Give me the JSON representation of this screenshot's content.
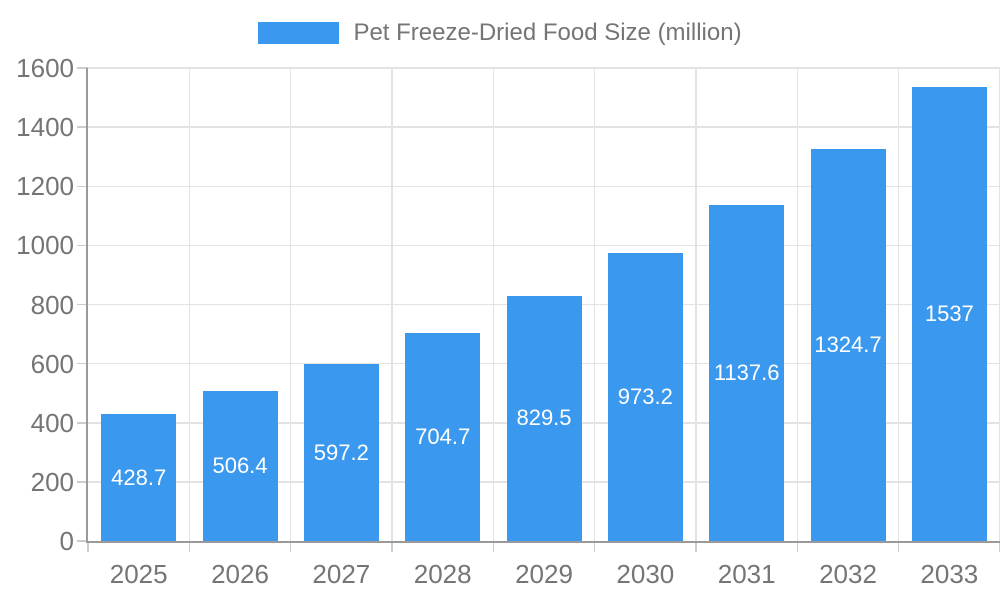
{
  "legend": {
    "label": "Pet Freeze-Dried Food Size (million)"
  },
  "chart_data": {
    "type": "bar",
    "title": "",
    "categories": [
      "2025",
      "2026",
      "2027",
      "2028",
      "2029",
      "2030",
      "2031",
      "2032",
      "2033"
    ],
    "values": [
      428.7,
      506.4,
      597.2,
      704.7,
      829.5,
      973.2,
      1137.6,
      1324.7,
      1537
    ],
    "series_name": "Pet Freeze-Dried Food Size (million)",
    "value_labels": [
      "428.7",
      "506.4",
      "597.2",
      "704.7",
      "829.5",
      "973.2",
      "1137.6",
      "1324.7",
      "1537"
    ],
    "xlabel": "",
    "ylabel": "",
    "ylim": [
      0,
      1600
    ],
    "ytick_step": 200,
    "ytick_labels": [
      "0",
      "200",
      "400",
      "600",
      "800",
      "1000",
      "1200",
      "1400",
      "1600"
    ],
    "grid": true,
    "legend_position": "top",
    "colors": {
      "bar": "#3a99ee",
      "value_label": "#ffffff",
      "axis_text": "#757575",
      "grid_line": "#e3e3e3",
      "axis_line": "#9a9a9a",
      "tick": "#cccccc"
    }
  }
}
